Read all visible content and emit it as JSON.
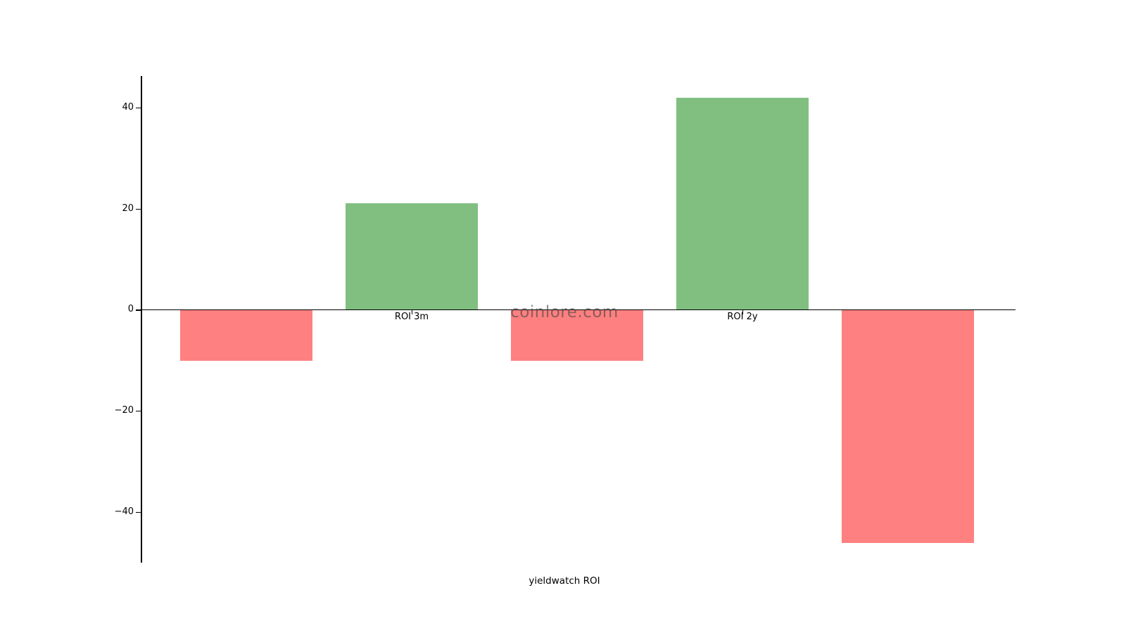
{
  "figure": {
    "watermark": "coinlore.com",
    "bottom_label": "yieldwatch ROI",
    "background_color": "#ffffff",
    "axis_color": "#000000"
  },
  "chart_data": {
    "type": "bar",
    "categories": [
      "",
      "ROI 3m",
      "",
      "ROI 2y",
      ""
    ],
    "values": [
      -10,
      21,
      -10,
      42,
      -46
    ],
    "bar_colors": [
      "#ff8080",
      "#80bf80",
      "#ff8080",
      "#80bf80",
      "#ff8080"
    ],
    "positive_color": "#80bf80",
    "negative_color": "#ff8080",
    "title": "",
    "xlabel": "yieldwatch ROI",
    "ylabel": "",
    "ylim": [
      -50.4,
      46.4
    ],
    "yticks": [
      40,
      20,
      0,
      -20,
      -40
    ],
    "ytick_labels": [
      "40",
      "20",
      "0",
      "−20",
      "−40"
    ],
    "visible_xticks": [
      {
        "index": 1,
        "label": "ROI 3m"
      },
      {
        "index": 3,
        "label": "ROI 2y"
      }
    ],
    "grid": false,
    "legend": false,
    "watermark": "coinlore.com"
  }
}
